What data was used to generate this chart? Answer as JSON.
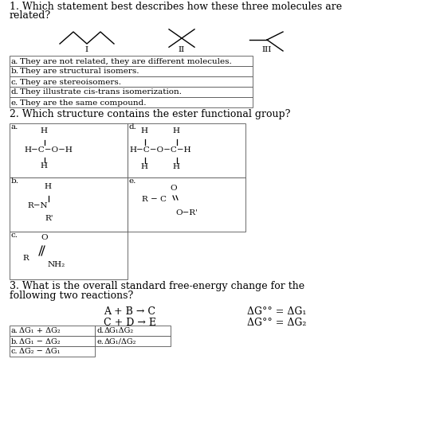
{
  "bg_color": "#ffffff",
  "figsize": [
    5.37,
    5.39
  ],
  "dpi": 100,
  "q1_text1": "1. Which statement best describes how these three molecules are",
  "q1_text2": "related?",
  "q1_rows": [
    [
      "a.",
      "They are not related, they are different molecules."
    ],
    [
      "b.",
      "They are structural isomers."
    ],
    [
      "c.",
      "They are stereoisomers."
    ],
    [
      "d.",
      "They illustrate cis-trans isomerization."
    ],
    [
      "e.",
      "They are the same compound."
    ]
  ],
  "q2_text": "2. Which structure contains the ester functional group?",
  "q3_text1": "3. What is the overall standard free-energy change for the",
  "q3_text2": "following two reactions?",
  "font_size_main": 9.0,
  "font_size_small": 7.5,
  "font_size_table": 7.5
}
